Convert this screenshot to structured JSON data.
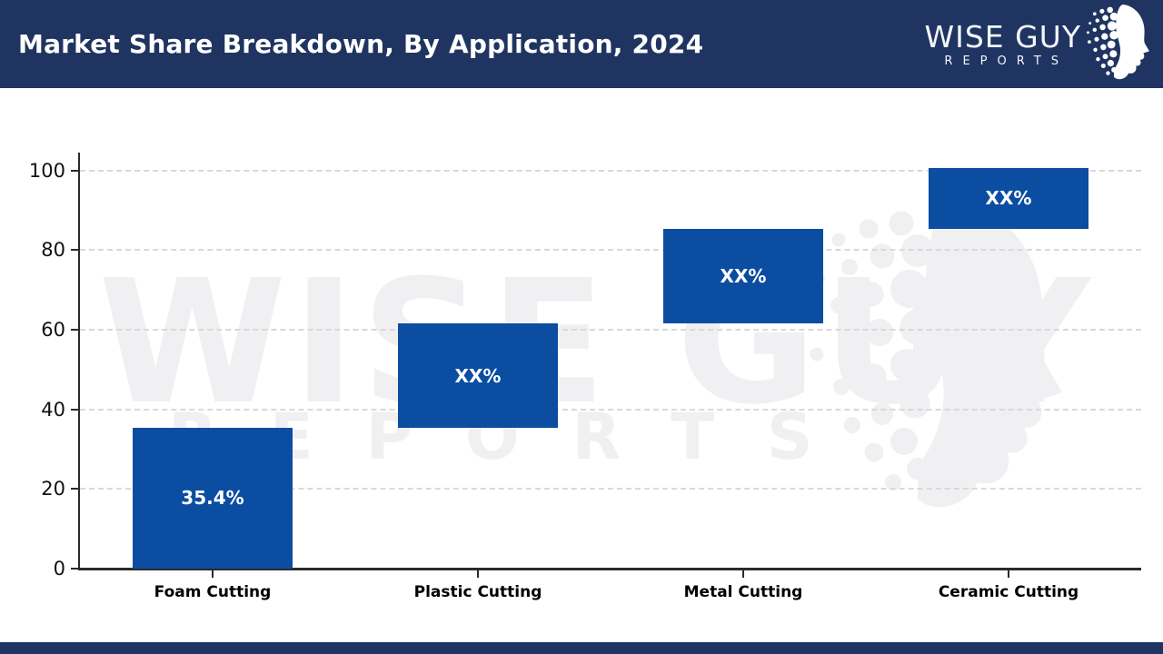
{
  "header": {
    "title": "Market Share Breakdown, By Application, 2024",
    "logo": {
      "brand_line1": "WISE GUY",
      "brand_line2": "REPORTS"
    }
  },
  "watermark": {
    "line1": "WISE GUY",
    "line2": "REPORTS"
  },
  "colors": {
    "navy": "#1F3461",
    "bar_blue": "#0B4DA1",
    "watermark_gray": "#F0F0F2",
    "gridline": "#D9D9D9",
    "axis": "#2B2B2B",
    "bar_label": "#FFFFFF"
  },
  "chart_data": {
    "type": "bar",
    "variant": "waterfall-segments",
    "title": "Market Share Breakdown, By Application, 2024",
    "categories": [
      "Foam Cutting",
      "Plastic Cutting",
      "Metal Cutting",
      "Ceramic Cutting"
    ],
    "segments": [
      {
        "category": "Foam Cutting",
        "start": 0,
        "end": 35.4,
        "label": "35.4%"
      },
      {
        "category": "Plastic Cutting",
        "start": 35.4,
        "end": 61.5,
        "label": "XX%"
      },
      {
        "category": "Metal Cutting",
        "start": 61.5,
        "end": 85.4,
        "label": "XX%"
      },
      {
        "category": "Ceramic Cutting",
        "start": 85.4,
        "end": 100.5,
        "label": "XX%"
      }
    ],
    "yticks": [
      0,
      20,
      40,
      60,
      80,
      100
    ],
    "ylim": [
      0,
      104.5
    ],
    "xlabel": "",
    "ylabel": "",
    "grid": "horizontal-dashed",
    "legend": null
  }
}
